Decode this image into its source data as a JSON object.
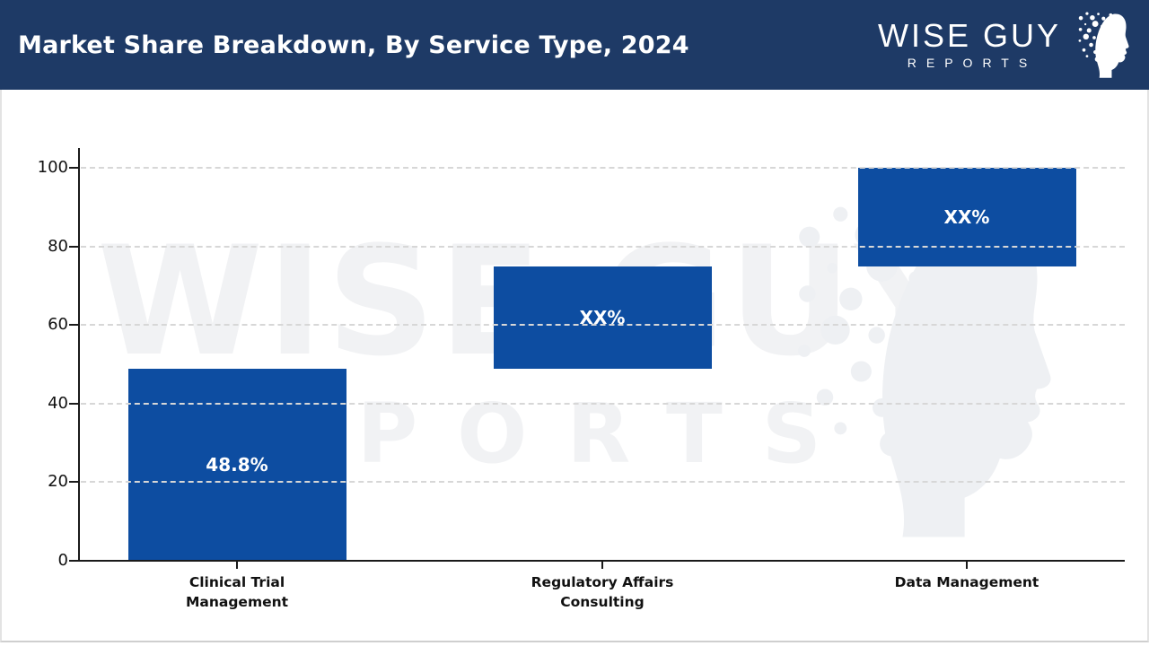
{
  "header": {
    "title": "Market Share Breakdown, By Service Type, 2024",
    "logo": {
      "line1": "WISE GUY",
      "line2": "REPORTS"
    }
  },
  "watermark": {
    "line1": "WISE GUY",
    "line2": "REPORTS"
  },
  "chart_data": {
    "type": "bar",
    "subtype": "floating-cumulative-bars",
    "title": "Market Share Breakdown, By Service Type, 2024",
    "categories": [
      "Clinical Trial\nManagement",
      "Regulatory Affairs\nConsulting",
      "Data Management"
    ],
    "bars": [
      {
        "category": "Clinical Trial Management",
        "start": 0,
        "end": 48.8,
        "label": "48.8%"
      },
      {
        "category": "Regulatory Affairs Consulting",
        "start": 48.8,
        "end": 75,
        "label": "XX%"
      },
      {
        "category": "Data Management",
        "start": 75,
        "end": 100,
        "label": "XX%"
      }
    ],
    "yticks": [
      0,
      20,
      40,
      60,
      80,
      100
    ],
    "ylim": [
      0,
      105
    ],
    "xlabel": "",
    "ylabel": "",
    "grid": "horizontal-dashed",
    "legend": "none",
    "bar_color": "#0d4da1",
    "bar_label_color": "#ffffff"
  },
  "colors": {
    "header_bg": "#1e3a66",
    "bar": "#0d4da1",
    "grid": "#d7d7d7",
    "axis": "#1a1a1a",
    "watermark": "#f1f2f4",
    "frame_border": "#d9d9d9"
  }
}
